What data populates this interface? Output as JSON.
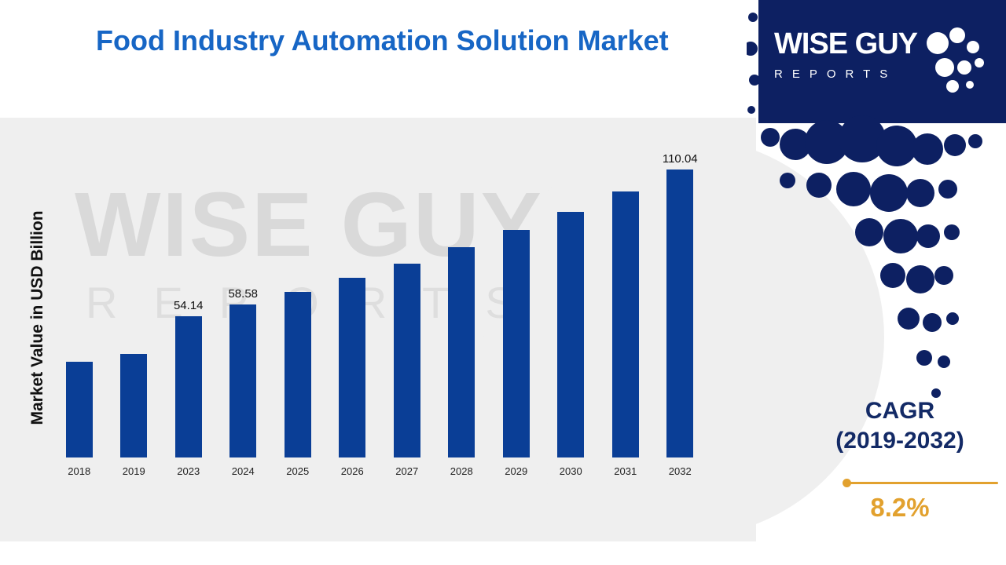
{
  "page": {
    "title": "Food Industry Automation Solution Market"
  },
  "logo": {
    "name": "WISE GUY",
    "subtitle": "REPORTS"
  },
  "watermark": {
    "line1": "WISE GUY",
    "line2": "REPORTS"
  },
  "chart_data": {
    "type": "bar",
    "title": "Food Industry Automation Solution Market",
    "ylabel": "Market Value in USD Billion",
    "categories": [
      "2018",
      "2019",
      "2023",
      "2024",
      "2025",
      "2026",
      "2027",
      "2028",
      "2029",
      "2030",
      "2031",
      "2032"
    ],
    "values": [
      36.5,
      39.5,
      54.14,
      58.58,
      63.38,
      68.58,
      74.2,
      80.29,
      86.87,
      93.99,
      101.7,
      110.04
    ],
    "value_labels": {
      "2023": "54.14",
      "2024": "58.58",
      "2032": "110.04"
    },
    "ylim": [
      0,
      120
    ],
    "grid": false,
    "legend": false,
    "bar_color": "#0a3e96"
  },
  "cagr": {
    "label": "CAGR",
    "range": "(2019-2032)",
    "value": "8.2%"
  },
  "colors": {
    "title_blue": "#1766c5",
    "bar_blue": "#0a3e96",
    "navy_panel": "#0d2062",
    "gold_accent": "#e2a12e",
    "panel_gray": "#efefef",
    "watermark_gray": "#d9d9d9"
  }
}
